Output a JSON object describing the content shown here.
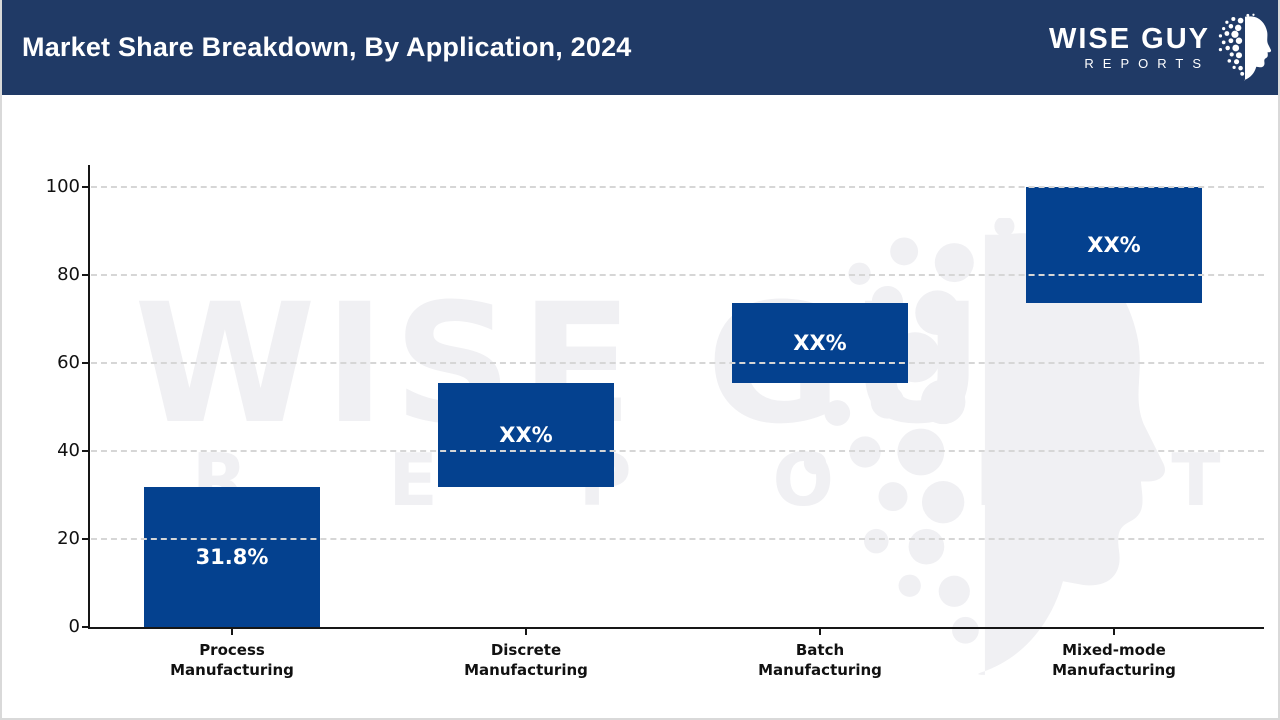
{
  "header": {
    "title": "Market Share Breakdown, By Application, 2024",
    "bg_color": "#203a66",
    "logo": {
      "line1": "WISE GUY",
      "line2": "REPORTS"
    }
  },
  "watermark": {
    "line1": "WISE GUY",
    "line2": "R E P O R T S"
  },
  "chart_data": {
    "type": "bar",
    "subtype": "waterfall",
    "title": "Market Share Breakdown, By Application, 2024",
    "categories": [
      "Process\nManufacturing",
      "Discrete\nManufacturing",
      "Batch\nManufacturing",
      "Mixed-mode\nManufacturing"
    ],
    "bars": [
      {
        "category": "Process Manufacturing",
        "start": 0,
        "end": 31.8,
        "label": "31.8%"
      },
      {
        "category": "Discrete Manufacturing",
        "start": 31.8,
        "end": 55.5,
        "label": "XX%"
      },
      {
        "category": "Batch Manufacturing",
        "start": 55.5,
        "end": 73.7,
        "label": "XX%"
      },
      {
        "category": "Mixed-mode Manufacturing",
        "start": 73.7,
        "end": 100,
        "label": "XX%"
      }
    ],
    "yticks": [
      0,
      20,
      40,
      60,
      80,
      100
    ],
    "ylim": [
      0,
      105
    ],
    "xlabel": "",
    "ylabel": "",
    "legend": "none",
    "grid": {
      "axis": "y",
      "style": "dashed",
      "color": "#d6d6d6",
      "above_bars": true
    },
    "bar_color": "#04418f",
    "bar_label_color": "#ffffff",
    "axis_color": "#161616"
  }
}
